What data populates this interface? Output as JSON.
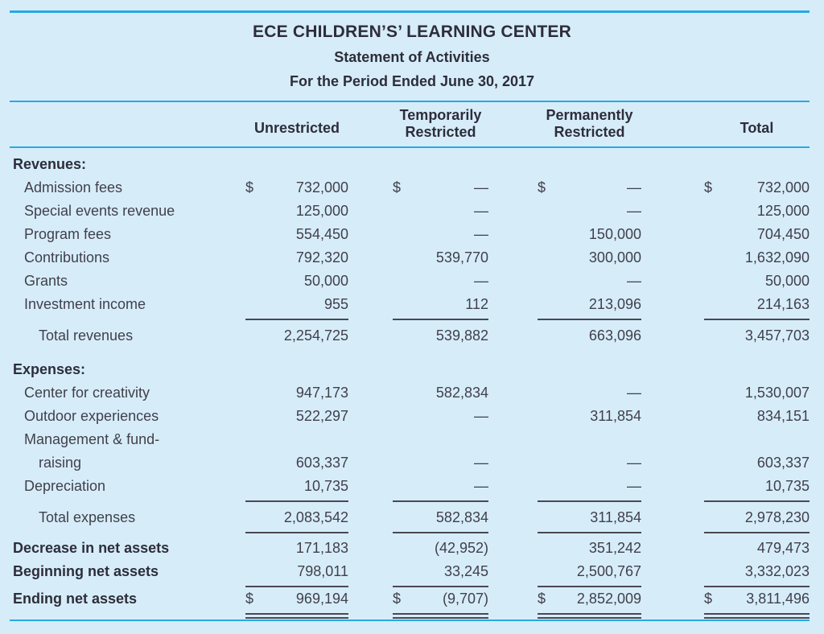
{
  "title": {
    "line1": "ECE CHILDREN’S’ LEARNING CENTER",
    "line2": "Statement of Activities",
    "line3": "For the Period Ended June 30, 2017"
  },
  "columns": [
    {
      "line1": "",
      "line2": "Unrestricted"
    },
    {
      "line1": "Temporarily",
      "line2": "Restricted"
    },
    {
      "line1": "Permanently",
      "line2": "Restricted"
    },
    {
      "line1": "",
      "line2": "Total"
    }
  ],
  "revenues": {
    "header": "Revenues:",
    "rows": [
      {
        "label": "Admission fees",
        "indent": 1,
        "cells": [
          {
            "p": "$",
            "v": "732,000"
          },
          {
            "p": "$",
            "v": "—"
          },
          {
            "p": "$",
            "v": "—"
          },
          {
            "p": "$",
            "v": "732,000"
          }
        ]
      },
      {
        "label": "Special events revenue",
        "indent": 1,
        "cells": [
          {
            "p": "",
            "v": "125,000"
          },
          {
            "p": "",
            "v": "—"
          },
          {
            "p": "",
            "v": "—"
          },
          {
            "p": "",
            "v": "125,000"
          }
        ]
      },
      {
        "label": "Program fees",
        "indent": 1,
        "cells": [
          {
            "p": "",
            "v": "554,450"
          },
          {
            "p": "",
            "v": "—"
          },
          {
            "p": "",
            "v": "150,000"
          },
          {
            "p": "",
            "v": "704,450"
          }
        ]
      },
      {
        "label": "Contributions",
        "indent": 1,
        "cells": [
          {
            "p": "",
            "v": "792,320"
          },
          {
            "p": "",
            "v": "539,770"
          },
          {
            "p": "",
            "v": "300,000"
          },
          {
            "p": "",
            "v": "1,632,090"
          }
        ]
      },
      {
        "label": "Grants",
        "indent": 1,
        "cells": [
          {
            "p": "",
            "v": "50,000"
          },
          {
            "p": "",
            "v": "—"
          },
          {
            "p": "",
            "v": "—"
          },
          {
            "p": "",
            "v": "50,000"
          }
        ]
      },
      {
        "label": "Investment income",
        "indent": 1,
        "rule": "single",
        "cells": [
          {
            "p": "",
            "v": "955"
          },
          {
            "p": "",
            "v": "112"
          },
          {
            "p": "",
            "v": "213,096"
          },
          {
            "p": "",
            "v": "214,163"
          }
        ]
      }
    ],
    "total": {
      "label": "Total revenues",
      "indent": 2,
      "cells": [
        {
          "p": "",
          "v": "2,254,725"
        },
        {
          "p": "",
          "v": "539,882"
        },
        {
          "p": "",
          "v": "663,096"
        },
        {
          "p": "",
          "v": "3,457,703"
        }
      ]
    }
  },
  "expenses": {
    "header": "Expenses:",
    "rows": [
      {
        "label": "Center for creativity",
        "indent": 1,
        "cells": [
          {
            "p": "",
            "v": "947,173"
          },
          {
            "p": "",
            "v": "582,834"
          },
          {
            "p": "",
            "v": "—"
          },
          {
            "p": "",
            "v": "1,530,007"
          }
        ]
      },
      {
        "label": "Outdoor experiences",
        "indent": 1,
        "cells": [
          {
            "p": "",
            "v": "522,297"
          },
          {
            "p": "",
            "v": "—"
          },
          {
            "p": "",
            "v": "311,854"
          },
          {
            "p": "",
            "v": "834,151"
          }
        ]
      },
      {
        "label": "Management & fund-",
        "label2": "raising",
        "indent": 1,
        "cells": [
          {
            "p": "",
            "v": "603,337"
          },
          {
            "p": "",
            "v": "—"
          },
          {
            "p": "",
            "v": "—"
          },
          {
            "p": "",
            "v": "603,337"
          }
        ]
      },
      {
        "label": "Depreciation",
        "indent": 1,
        "rule": "single",
        "cells": [
          {
            "p": "",
            "v": "10,735"
          },
          {
            "p": "",
            "v": "—"
          },
          {
            "p": "",
            "v": "—"
          },
          {
            "p": "",
            "v": "10,735"
          }
        ]
      }
    ],
    "total": {
      "label": "Total expenses",
      "indent": 2,
      "rule": "single",
      "cells": [
        {
          "p": "",
          "v": "2,083,542"
        },
        {
          "p": "",
          "v": "582,834"
        },
        {
          "p": "",
          "v": "311,854"
        },
        {
          "p": "",
          "v": "2,978,230"
        }
      ]
    }
  },
  "net_assets": {
    "rows": [
      {
        "label": "Decrease in net assets",
        "indent": 0,
        "bold": true,
        "cells": [
          {
            "p": "",
            "v": "171,183"
          },
          {
            "p": "",
            "v": "(42,952)"
          },
          {
            "p": "",
            "v": "351,242"
          },
          {
            "p": "",
            "v": "479,473"
          }
        ]
      },
      {
        "label": "Beginning net assets",
        "indent": 0,
        "bold": true,
        "rule": "single",
        "cells": [
          {
            "p": "",
            "v": "798,011"
          },
          {
            "p": "",
            "v": "33,245"
          },
          {
            "p": "",
            "v": "2,500,767"
          },
          {
            "p": "",
            "v": "3,332,023"
          }
        ]
      },
      {
        "label": "Ending net assets",
        "indent": 0,
        "bold": true,
        "rule": "double",
        "cells": [
          {
            "p": "$",
            "v": "969,194"
          },
          {
            "p": "$",
            "v": "(9,707)"
          },
          {
            "p": "$",
            "v": "2,852,009"
          },
          {
            "p": "$",
            "v": "3,811,496"
          }
        ]
      }
    ]
  }
}
